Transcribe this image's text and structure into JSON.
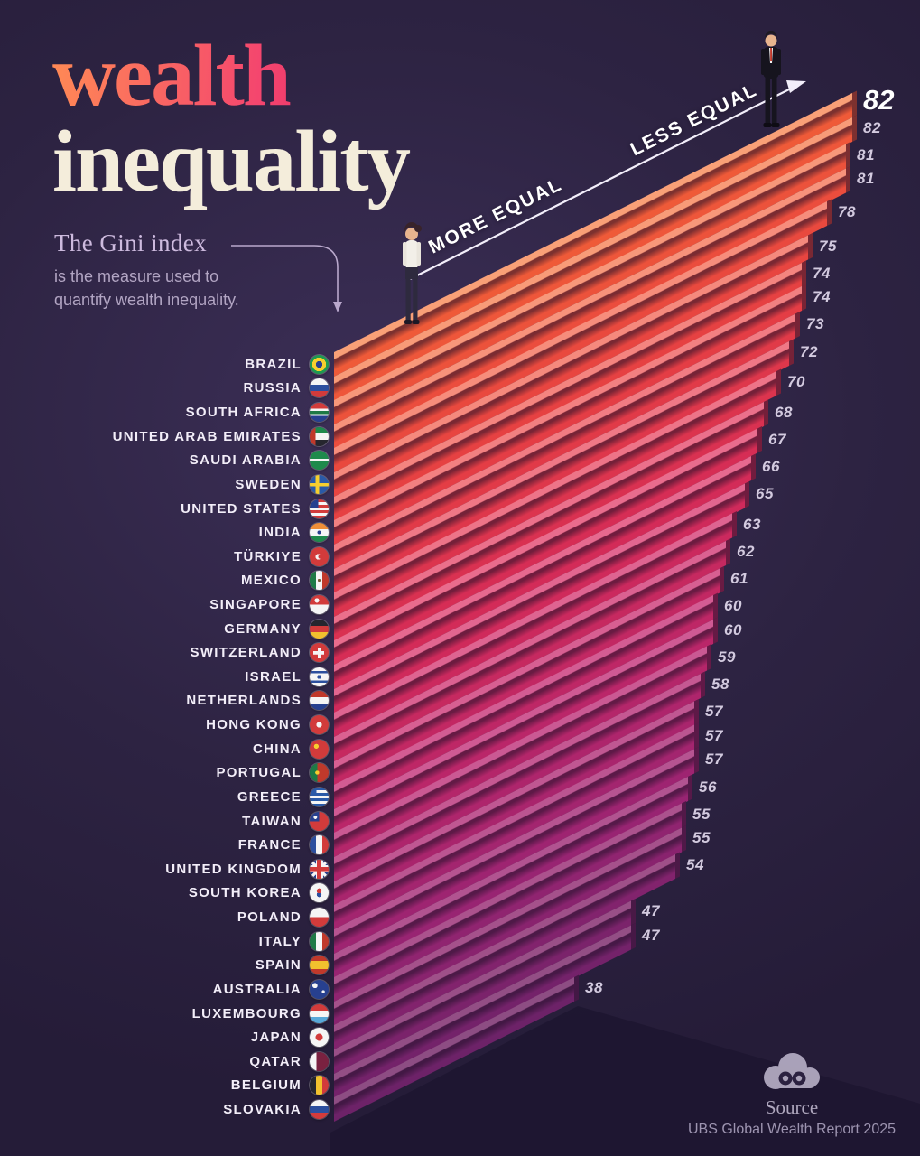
{
  "title": {
    "line1": "wealth",
    "line2": "inequality"
  },
  "note": {
    "heading": "The Gini index",
    "body": "is the measure used to quantify wealth inequality."
  },
  "axis": {
    "more_equal": "MORE EQUAL",
    "less_equal": "LESS EQUAL"
  },
  "source": {
    "label": "Source",
    "text": "UBS Global Wealth Report 2025"
  },
  "colors": {
    "background": "#2d2342",
    "title_gradient": [
      "#ff8a55",
      "#f4466e",
      "#e01d66"
    ],
    "title_line2": "#f4eddb",
    "bar_front_stops": [
      "#ef5a38",
      "#e64042",
      "#d52c56",
      "#bc2668",
      "#992472",
      "#6d2268"
    ],
    "bar_top_stops": [
      "#f9a077",
      "#f4837f",
      "#e86a8e",
      "#d15b94",
      "#b25390",
      "#8d4d83"
    ],
    "bar_shade_mix": "#201028",
    "value_label": "#d3cadf",
    "shadow": "#1d1530"
  },
  "chart_data": {
    "type": "bar",
    "title": "wealth inequality (Gini index)",
    "axis_annotations": [
      "MORE EQUAL",
      "LESS EQUAL"
    ],
    "value_range": [
      38,
      82
    ],
    "categories": [
      "BRAZIL",
      "RUSSIA",
      "SOUTH AFRICA",
      "UNITED ARAB EMIRATES",
      "SAUDI ARABIA",
      "SWEDEN",
      "UNITED STATES",
      "INDIA",
      "TÜRKIYE",
      "MEXICO",
      "SINGAPORE",
      "GERMANY",
      "SWITZERLAND",
      "ISRAEL",
      "NETHERLANDS",
      "HONG KONG",
      "CHINA",
      "PORTUGAL",
      "GREECE",
      "TAIWAN",
      "FRANCE",
      "UNITED KINGDOM",
      "SOUTH KOREA",
      "POLAND",
      "ITALY",
      "SPAIN",
      "AUSTRALIA",
      "LUXEMBOURG",
      "JAPAN",
      "QATAR",
      "BELGIUM",
      "SLOVAKIA"
    ],
    "values": [
      82,
      82,
      81,
      81,
      78,
      75,
      74,
      74,
      73,
      72,
      70,
      68,
      67,
      66,
      65,
      63,
      62,
      61,
      60,
      60,
      59,
      58,
      57,
      57,
      57,
      56,
      55,
      55,
      54,
      47,
      47,
      38
    ],
    "flags_css": [
      "radial-gradient(circle at 50% 50%, #27408f 0 24%, rgba(0,0,0,0) 24%), radial-gradient(circle at 50% 50%, #f7cf2e 0 52%, rgba(0,0,0,0) 52%), #1e9a50",
      "linear-gradient(180deg, #f5f5f5 0 34%, #2c4f9e 34% 67%, #d23b3b 67%)",
      "linear-gradient(180deg, #d23b3b 0 32%, #f5f5f5 32% 42%, #1e7a46 42% 60%, #f5f5f5 60% 68%, #27408f 68%)",
      "linear-gradient(90deg, #c0392b 0 30%, rgba(0,0,0,0) 30%), linear-gradient(180deg, #1e8a4c 0 33%, #f5f5f5 33% 67%, #26262e 67%)",
      "linear-gradient(180deg, rgba(0,0,0,0) 0 42%, #f5f5f5 42% 52%, rgba(0,0,0,0) 52%), #1e8a4c",
      "linear-gradient(90deg, rgba(0,0,0,0) 0 32%, #f7cf2e 32% 50%, rgba(0,0,0,0) 50%), linear-gradient(180deg, rgba(0,0,0,0) 0 42%, #f7cf2e 42% 60%, rgba(0,0,0,0) 60%), #2a5aa8",
      "linear-gradient(90deg, #27408f 0 45%, rgba(0,0,0,0) 45%) 0 0/100% 48% no-repeat, repeating-linear-gradient(180deg, #d23b3b 0 3px, #f5f5f5 3px 6px)",
      "radial-gradient(circle at 50% 50%, #27408f 0 13%, rgba(0,0,0,0) 13%), linear-gradient(180deg, #ef8e38 0 33%, #f5f5f5 33% 67%, #1e8a4c 67%)",
      "radial-gradient(circle at 56% 50%, #d23b3b 0 14%, rgba(0,0,0,0) 15%), radial-gradient(circle at 46% 50%, #f5f5f5 0 20%, rgba(0,0,0,0) 21%), #d23b3b",
      "radial-gradient(circle at 50% 50%, #7a5a34 0 10%, rgba(0,0,0,0) 10%), linear-gradient(90deg, #1e7a46 0 33%, #f5f5f5 33% 67%, #c0392b 67%)",
      "radial-gradient(circle at 38% 28%, #f5f5f5 0 12%, rgba(0,0,0,0) 13%), linear-gradient(180deg, #d23b3b 0 50%, #f5f5f5 50%)",
      "linear-gradient(180deg, #26262e 0 33%, #d23b3b 33% 67%, #f2c12e 67%)",
      "linear-gradient(#f5f5f5,#f5f5f5) 50% 50%/58% 18% no-repeat, linear-gradient(#f5f5f5,#f5f5f5) 50% 50%/18% 58% no-repeat, #d23b3b",
      "radial-gradient(circle at 50% 50%, #2c4f9e 0 15%, rgba(0,0,0,0) 15%), linear-gradient(180deg, #f5f5f5 0 20%, #2c4f9e 20% 32%, #f5f5f5 32% 68%, #2c4f9e 68% 80%, #f5f5f5 80%)",
      "linear-gradient(180deg, #c0392b 0 33%, #f5f5f5 33% 67%, #27408f 67%)",
      "radial-gradient(circle at 50% 50%, #f5f5f5 0 20%, rgba(0,0,0,0) 21%), #d23b3b",
      "radial-gradient(circle at 35% 35%, #f7cf2e 0 13%, rgba(0,0,0,0) 14%), #d23b3b",
      "radial-gradient(circle at 40% 50%, #f7cf2e 0 13%, rgba(0,0,0,0) 14%), linear-gradient(90deg, #1e7a46 0 40%, #c0392b 40%)",
      "linear-gradient(90deg, #2a5aa8 0 35%, rgba(0,0,0,0) 35%) 0 0/100% 45% no-repeat, repeating-linear-gradient(180deg, #2a5aa8 0 3px, #f5f5f5 3px 6px)",
      "radial-gradient(circle at 30% 28%, #f5f5f5 0 9%, rgba(0,0,0,0) 10%), linear-gradient(90deg, #27408f 0 50%, rgba(0,0,0,0) 50%) 0 0/100% 50% no-repeat, #d23b3b",
      "linear-gradient(90deg, #2c4f9e 0 33%, #f5f5f5 33% 67%, #d23b3b 67%)",
      "linear-gradient(#d23b3b,#d23b3b) 50% 50%/100% 22% no-repeat, linear-gradient(#d23b3b,#d23b3b) 50% 50%/22% 100% no-repeat, linear-gradient(#f5f5f5,#f5f5f5) 50% 50%/100% 38% no-repeat, linear-gradient(#f5f5f5,#f5f5f5) 50% 50%/38% 100% no-repeat, linear-gradient(45deg, rgba(0,0,0,0) 45%, #f5f5f5 45% 55%, rgba(0,0,0,0) 55%), linear-gradient(135deg, rgba(0,0,0,0) 45%, #f5f5f5 45% 55%, rgba(0,0,0,0) 55%), #27408f",
      "radial-gradient(circle at 50% 40%, #d23b3b 0 16%, rgba(0,0,0,0) 17%), radial-gradient(circle at 50% 60%, #2c4f9e 0 16%, rgba(0,0,0,0) 17%), #f5f5f5",
      "linear-gradient(180deg, #f5f5f5 0 50%, #d23b3b 50%)",
      "linear-gradient(90deg, #1e7a46 0 33%, #f5f5f5 33% 67%, #c0392b 67%)",
      "linear-gradient(180deg, #c0392b 0 28%, #f2c12e 28% 72%, #c0392b 72%)",
      "radial-gradient(circle at 72% 62%, #f5f5f5 0 8%, rgba(0,0,0,0) 9%), radial-gradient(circle at 28% 30%, #f5f5f5 0 13%, rgba(0,0,0,0) 14%), #27408f",
      "linear-gradient(180deg, #d23b3b 0 33%, #f5f5f5 33% 67%, #58a8d8 67%)",
      "radial-gradient(circle at 50% 50%, #d23b3b 0 26%, rgba(0,0,0,0) 27%), #f5f5f5",
      "linear-gradient(90deg, #f5f5f5 0 35%, #7a2140 35%)",
      "linear-gradient(90deg, #26262e 0 33%, #f2c12e 33% 67%, #d23b3b 67%)",
      "linear-gradient(180deg, #f5f5f5 0 33%, #2c4f9e 33% 67%, #d23b3b 67%)"
    ]
  }
}
